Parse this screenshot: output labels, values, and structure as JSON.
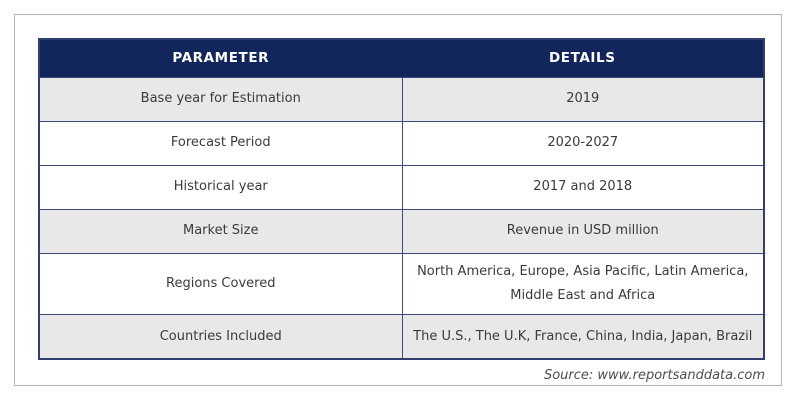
{
  "chart_data": {
    "type": "table",
    "columns": [
      "PARAMETER",
      "DETAILS"
    ],
    "rows": [
      {
        "parameter": "Base year for Estimation",
        "details": "2019",
        "shaded": true
      },
      {
        "parameter": "Forecast Period",
        "details": "2020-2027",
        "shaded": false
      },
      {
        "parameter": "Historical year",
        "details": "2017 and 2018",
        "shaded": false
      },
      {
        "parameter": "Market Size",
        "details": "Revenue in USD million",
        "shaded": true
      },
      {
        "parameter": "Regions Covered",
        "details": "North America, Europe, Asia Pacific, Latin America, Middle East and Africa",
        "shaded": false
      },
      {
        "parameter": "Countries Included",
        "details": "The U.S., The  U.K, France, China, India, Japan, Brazil",
        "shaded": true
      }
    ]
  },
  "source": {
    "label": "Source: www.reportsanddata.com"
  },
  "colors": {
    "header_bg": "#13265c",
    "header_text": "#ffffff",
    "row_bg": "#ffffff",
    "row_shaded_bg": "#e9e8e8",
    "border": "#3d4b7d",
    "table_border": "#31406e",
    "frame_border": "#b5b5b5",
    "text": "#3b3b3b",
    "source_text": "#4d4d4d"
  }
}
